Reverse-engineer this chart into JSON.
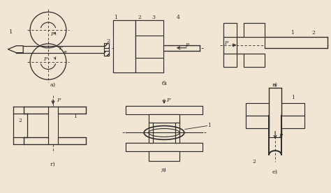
{
  "bg_color": "#f0e6d3",
  "line_color": "#2a2a2a",
  "fig_width": 4.74,
  "fig_height": 2.77,
  "dpi": 100,
  "labels": {
    "a": "а)",
    "b": "бі",
    "v": "в)",
    "g": "г)",
    "d": "ді",
    "e": "е)"
  }
}
